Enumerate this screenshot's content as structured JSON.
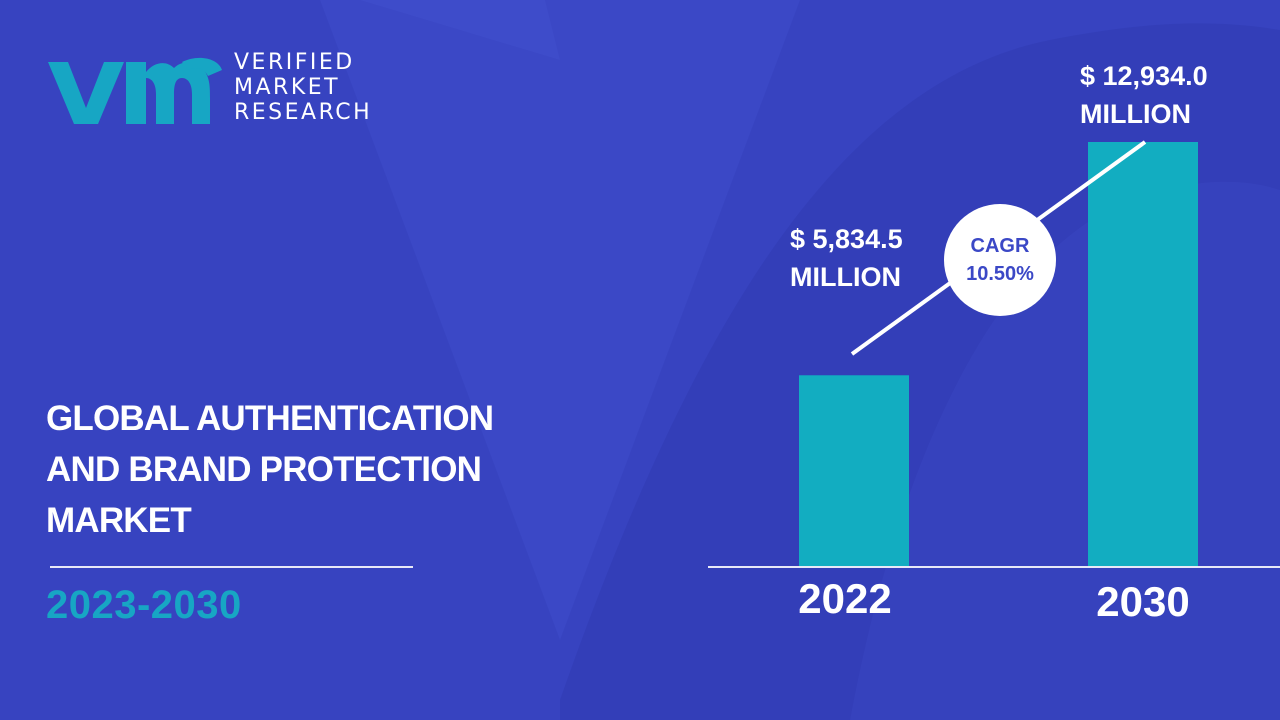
{
  "brand": {
    "line1": "VERIFIED",
    "line2": "MARKET",
    "line3": "RESEARCH",
    "mark_color": "#17a6c4"
  },
  "title_lines": [
    "GLOBAL AUTHENTICATION",
    "AND BRAND PROTECTION",
    "MARKET"
  ],
  "period": "2023-2030",
  "colors": {
    "background": "#3b48c6",
    "bar": "#12adc1",
    "text": "#ffffff",
    "accent": "#17a6c4"
  },
  "cagr": {
    "label": "CAGR",
    "value": "10.50%"
  },
  "chart_data": {
    "type": "bar",
    "categories": [
      "2022",
      "2030"
    ],
    "values": [
      5834.5,
      12934.0
    ],
    "unit": "MILLION",
    "value_labels": [
      {
        "amount": "$ 5,834.5",
        "unit": "MILLION"
      },
      {
        "amount": "$ 12,934.0",
        "unit": "MILLION"
      }
    ],
    "title": "GLOBAL AUTHENTICATION AND BRAND PROTECTION MARKET",
    "xlabel": "",
    "ylabel": "",
    "ylim": [
      0,
      13500
    ],
    "grid": false,
    "legend": "none"
  }
}
